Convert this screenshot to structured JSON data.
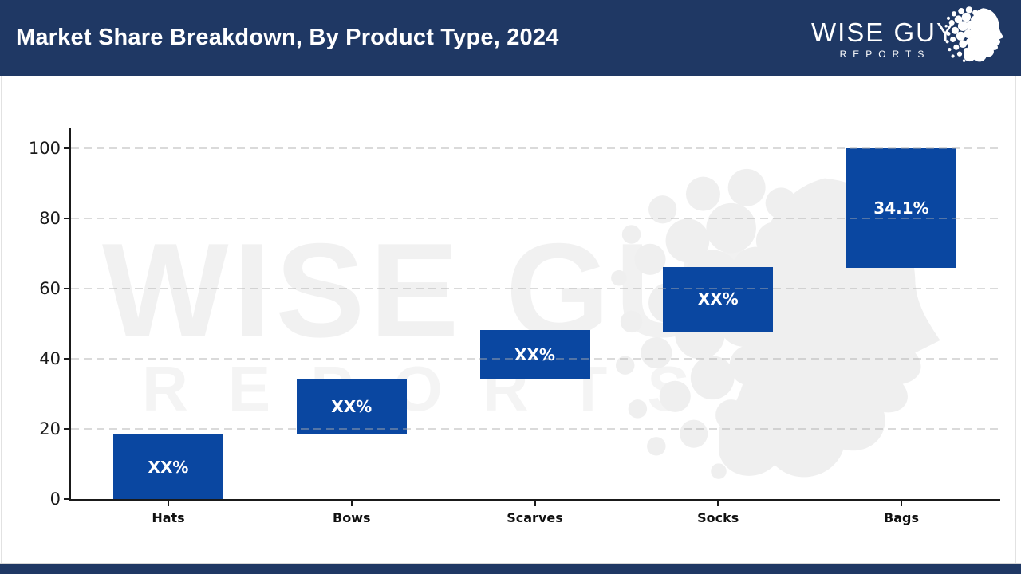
{
  "header": {
    "title": "Market Share Breakdown, By Product Type, 2024",
    "logo": {
      "name_line": "WISE GUY",
      "sub_line": "REPORTS"
    }
  },
  "watermark": {
    "name_line": "WISE GUY",
    "sub_line": "REPORTS"
  },
  "chart_data": {
    "type": "bar",
    "subtype": "waterfall (floating cumulative segments)",
    "title": "Market Share Breakdown, By Product Type, 2024",
    "categories": [
      "Hats",
      "Bows",
      "Scarves",
      "Socks",
      "Bags"
    ],
    "bars": [
      {
        "category": "Hats",
        "start": 0,
        "end": 18.4,
        "label": "XX%"
      },
      {
        "category": "Bows",
        "start": 18.6,
        "end": 34.2,
        "label": "XX%"
      },
      {
        "category": "Scarves",
        "start": 34.0,
        "end": 48.1,
        "label": "XX%"
      },
      {
        "category": "Socks",
        "start": 47.8,
        "end": 66.1,
        "label": "XX%"
      },
      {
        "category": "Bags",
        "start": 65.9,
        "end": 100.0,
        "label": "34.1%"
      }
    ],
    "xlabel": "",
    "ylabel": "",
    "ylim": [
      0,
      100
    ],
    "yticks": [
      0,
      20,
      40,
      60,
      80,
      100
    ],
    "grid": "horizontal dashed gridlines",
    "legend": "none",
    "bar_color": "#0a47a1",
    "bar_label_color": "#ffffff"
  },
  "colors": {
    "header_bg": "#1f3864",
    "footer_bg": "#1f3864",
    "bar": "#0a47a1",
    "watermark": "#f1f1f1",
    "axis": "#1a1a1a",
    "grid": "#c9c9c9"
  }
}
